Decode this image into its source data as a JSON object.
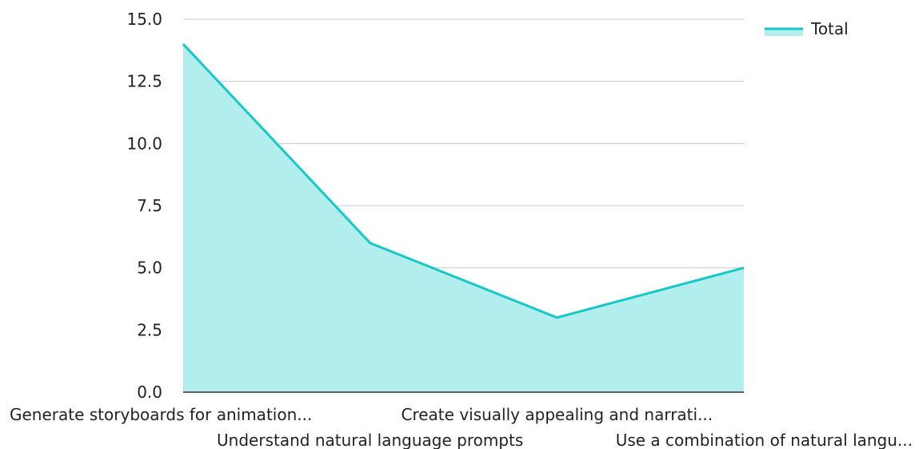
{
  "chart_data": {
    "type": "area",
    "categories": [
      "Generate storyboards for animation...",
      "Understand natural language prompts",
      "Create visually appealing and narrati...",
      "Use a combination of natural langu..."
    ],
    "series": [
      {
        "name": "Total",
        "values": [
          14,
          6,
          3,
          5
        ]
      }
    ],
    "ylim": [
      0,
      15
    ],
    "yticks": [
      0,
      2.5,
      5,
      7.5,
      10,
      12.5,
      15
    ],
    "ytick_labels": [
      "0.0",
      "2.5",
      "5.0",
      "7.5",
      "10.0",
      "12.5",
      "15.0"
    ],
    "grid": true,
    "legend_position": "top-right",
    "colors": {
      "line": "#17c8c8",
      "fill": "#b2eeee",
      "grid": "#c8c8c8",
      "axis": "#333333"
    }
  }
}
